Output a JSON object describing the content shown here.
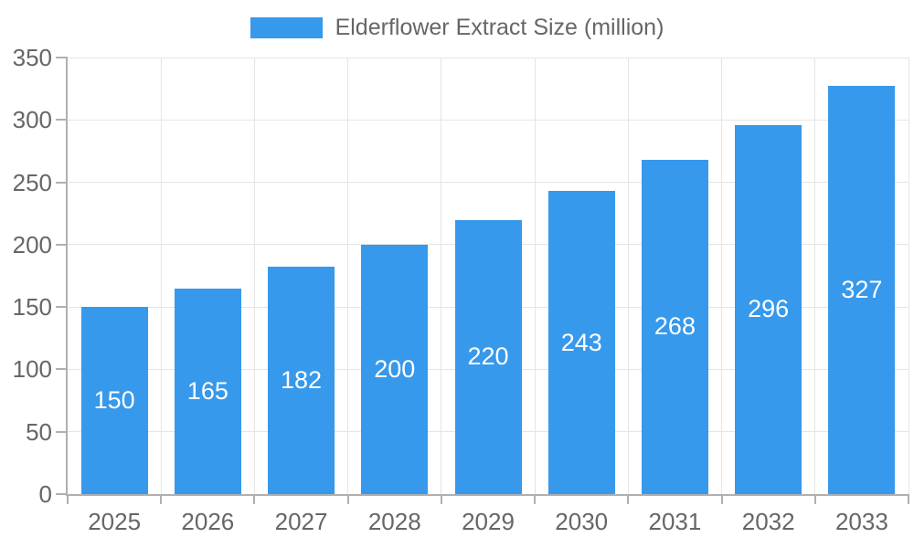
{
  "colors": {
    "bar": "#3799EB",
    "grid": "#e5e5e5",
    "axis": "#b0b0b0",
    "label_text": "#666666",
    "value_text": "#ffffff"
  },
  "legend": {
    "label": "Elderflower Extract Size (million)"
  },
  "chart_data": {
    "type": "bar",
    "title": "Elderflower Extract Size (million)",
    "categories": [
      "2025",
      "2026",
      "2027",
      "2028",
      "2029",
      "2030",
      "2031",
      "2032",
      "2033"
    ],
    "values": [
      150,
      165,
      182,
      200,
      220,
      243,
      268,
      296,
      327
    ],
    "xlabel": "",
    "ylabel": "",
    "ylim": [
      0,
      350
    ],
    "ytick_step": 50,
    "yticks": [
      0,
      50,
      100,
      150,
      200,
      250,
      300,
      350
    ],
    "grid": true,
    "legend_position": "top-center",
    "value_labels": "centered-inside-white"
  }
}
